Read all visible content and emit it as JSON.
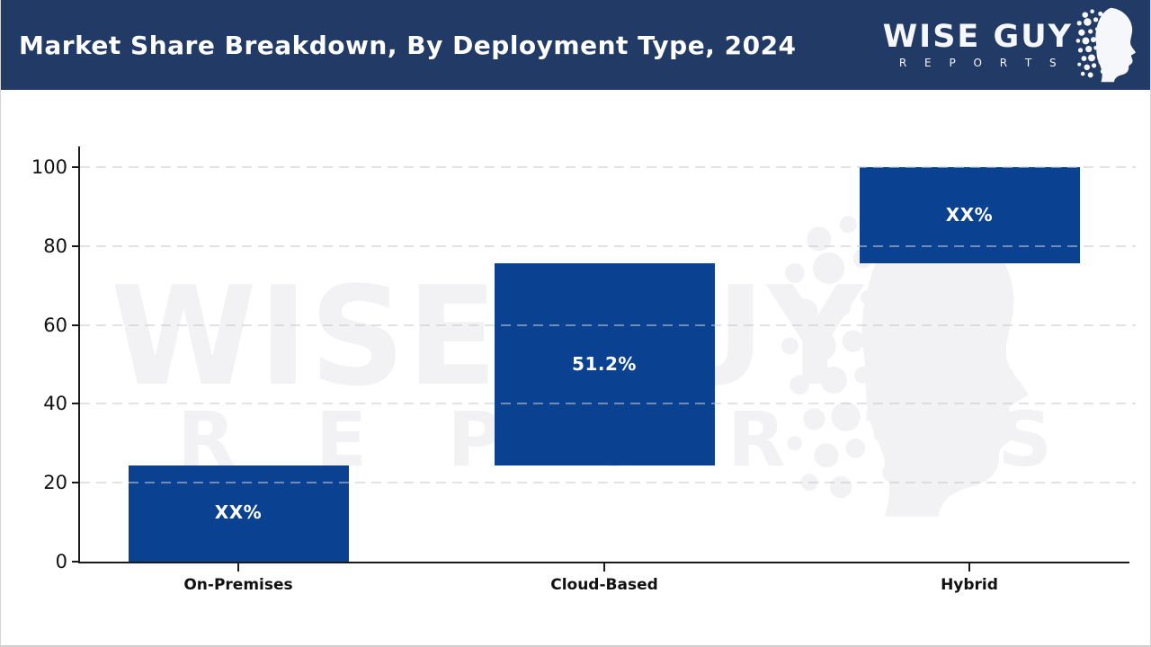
{
  "header": {
    "title": "Market Share Breakdown, By Deployment Type, 2024",
    "logo": {
      "line1": "WISE GUY",
      "line2": "R E P O R T S"
    }
  },
  "watermark": {
    "line1": "WISE GUY",
    "line2": "R E P O R T S"
  },
  "colors": {
    "header_bg": "#213a66",
    "bar": "#0b4191",
    "bar_label": "#ffffff",
    "axis": "#1a1a1a",
    "gridline": "#dcdcdc",
    "watermark": "#f2f2f5"
  },
  "chart_data": {
    "type": "bar",
    "subtype": "stacked-range (each bar floats where the previous ended; shares sum to 100)",
    "title": "Market Share Breakdown, By Deployment Type, 2024",
    "categories": [
      "On-Premises",
      "Cloud-Based",
      "Hybrid"
    ],
    "segments": [
      {
        "category": "On-Premises",
        "start": 0,
        "end": 24.4,
        "height": 24.4,
        "label": "XX%"
      },
      {
        "category": "Cloud-Based",
        "start": 24.4,
        "end": 75.6,
        "height": 51.2,
        "label": "51.2%"
      },
      {
        "category": "Hybrid",
        "start": 75.6,
        "end": 100,
        "height": 24.4,
        "label": "XX%"
      }
    ],
    "yticks": [
      0,
      20,
      40,
      60,
      80,
      100
    ],
    "ylim": [
      0,
      100
    ],
    "xlabel": "",
    "ylabel": "",
    "grid": "horizontal dashed, drawn over bars",
    "legend": "none",
    "bar_color": "#0b4191"
  }
}
